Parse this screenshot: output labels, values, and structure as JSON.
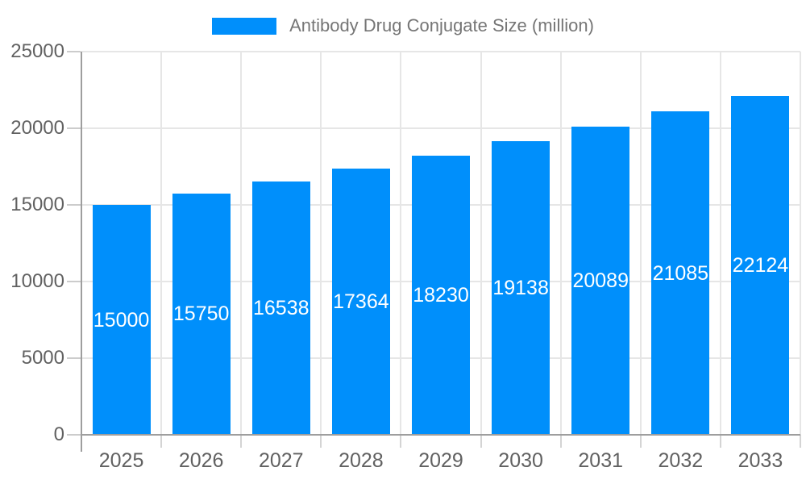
{
  "chart_data": {
    "type": "bar",
    "legend": "Antibody Drug Conjugate Size (million)",
    "legend_position": "top",
    "categories": [
      "2025",
      "2026",
      "2027",
      "2028",
      "2029",
      "2030",
      "2031",
      "2032",
      "2033"
    ],
    "values": [
      15000,
      15750,
      16538,
      17364,
      18230,
      19138,
      20089,
      21085,
      22124
    ],
    "xlabel": "",
    "ylabel": "",
    "ylim": [
      0,
      25000
    ],
    "ytick_step": 5000,
    "ytick_labels": [
      "0",
      "5000",
      "10000",
      "15000",
      "20000",
      "25000"
    ],
    "grid": "on",
    "data_labels": "inside-center",
    "colors": {
      "bar": "#008FFB",
      "grid": "#e6e6e6",
      "axis": "#9e9e9e",
      "boundary_tick": "#d4d4d4",
      "y_tick": "#cccccc",
      "tick_text": "#616161",
      "legend_text": "#757575",
      "bar_label_text": "#ffffff",
      "background": "#ffffff"
    }
  }
}
